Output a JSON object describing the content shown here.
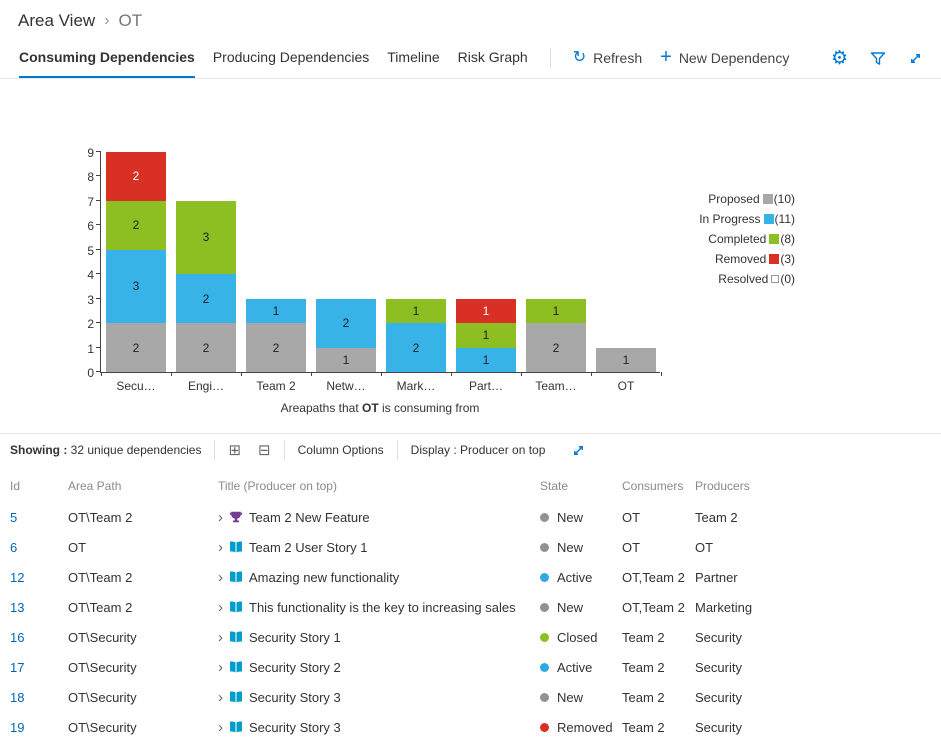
{
  "breadcrumb": {
    "root": "Area View",
    "separator": "›",
    "current": "OT"
  },
  "tabs": [
    {
      "label": "Consuming Dependencies",
      "active": true
    },
    {
      "label": "Producing Dependencies",
      "active": false
    },
    {
      "label": "Timeline",
      "active": false
    },
    {
      "label": "Risk Graph",
      "active": false
    }
  ],
  "toolbar": {
    "refresh_label": "Refresh",
    "new_dependency_label": "New Dependency",
    "icon_names": [
      "refresh-icon",
      "add-icon",
      "settings-gear-icon",
      "filter-icon",
      "fullscreen-icon"
    ]
  },
  "chart_data": {
    "type": "bar",
    "stacked": true,
    "categories": [
      "Secu…",
      "Engi…",
      "Team 2",
      "Netw…",
      "Mark…",
      "Part…",
      "Team…",
      "OT"
    ],
    "series": [
      {
        "name": "Proposed",
        "color": "#a8a8a8",
        "legend_count": 10,
        "values": [
          2,
          2,
          2,
          1,
          0,
          0,
          2,
          1
        ]
      },
      {
        "name": "In Progress",
        "color": "#38b3e8",
        "legend_count": 11,
        "values": [
          3,
          2,
          1,
          2,
          2,
          1,
          0,
          0
        ]
      },
      {
        "name": "Completed",
        "color": "#8dbe22",
        "legend_count": 8,
        "values": [
          2,
          3,
          0,
          0,
          1,
          1,
          1,
          0
        ]
      },
      {
        "name": "Removed",
        "color": "#d93025",
        "legend_count": 3,
        "values": [
          2,
          0,
          0,
          0,
          0,
          1,
          0,
          0
        ]
      },
      {
        "name": "Resolved",
        "color": "#ffffff",
        "legend_count": 0,
        "values": [
          0,
          0,
          0,
          0,
          0,
          0,
          0,
          0
        ]
      }
    ],
    "ylim": [
      0,
      9
    ],
    "yticks": [
      0,
      1,
      2,
      3,
      4,
      5,
      6,
      7,
      8,
      9
    ],
    "xlabel": {
      "prefix": "Areapaths that ",
      "bold": "OT",
      "suffix": " is consuming from"
    },
    "legend_position": "right",
    "grid": false
  },
  "grid_toolbar": {
    "showing_label": "Showing :",
    "showing_value": "32 unique dependencies",
    "column_options_label": "Column Options",
    "display_label": "Display :",
    "display_value": "Producer on top"
  },
  "table": {
    "columns": [
      "Id",
      "Area Path",
      "Title (Producer on top)",
      "State",
      "Consumers",
      "Producers"
    ],
    "rows": [
      {
        "id": "5",
        "area_path": "OT\\Team 2",
        "icon": "feature",
        "title": "Team 2 New Feature",
        "state": "New",
        "state_color": "#919191",
        "consumers": "OT",
        "producers": "Team 2"
      },
      {
        "id": "6",
        "area_path": "OT",
        "icon": "story",
        "title": "Team 2 User Story 1",
        "state": "New",
        "state_color": "#919191",
        "consumers": "OT",
        "producers": "OT"
      },
      {
        "id": "12",
        "area_path": "OT\\Team 2",
        "icon": "story",
        "title": "Amazing new functionality",
        "state": "Active",
        "state_color": "#2fa9e1",
        "consumers": "OT,Team 2",
        "producers": "Partner"
      },
      {
        "id": "13",
        "area_path": "OT\\Team 2",
        "icon": "story",
        "title": "This functionality is the key to increasing sales",
        "state": "New",
        "state_color": "#919191",
        "consumers": "OT,Team 2",
        "producers": "Marketing"
      },
      {
        "id": "16",
        "area_path": "OT\\Security",
        "icon": "story",
        "title": "Security Story 1",
        "state": "Closed",
        "state_color": "#8dbe22",
        "consumers": "Team 2",
        "producers": "Security"
      },
      {
        "id": "17",
        "area_path": "OT\\Security",
        "icon": "story",
        "title": "Security Story 2",
        "state": "Active",
        "state_color": "#2fa9e1",
        "consumers": "Team 2",
        "producers": "Security"
      },
      {
        "id": "18",
        "area_path": "OT\\Security",
        "icon": "story",
        "title": "Security Story 3",
        "state": "New",
        "state_color": "#919191",
        "consumers": "Team 2",
        "producers": "Security"
      },
      {
        "id": "19",
        "area_path": "OT\\Security",
        "icon": "story",
        "title": "Security Story 3",
        "state": "Removed",
        "state_color": "#d93025",
        "consumers": "Team 2",
        "producers": "Security"
      }
    ]
  },
  "colors": {
    "accent": "#0078d4",
    "link": "#0067b8"
  }
}
